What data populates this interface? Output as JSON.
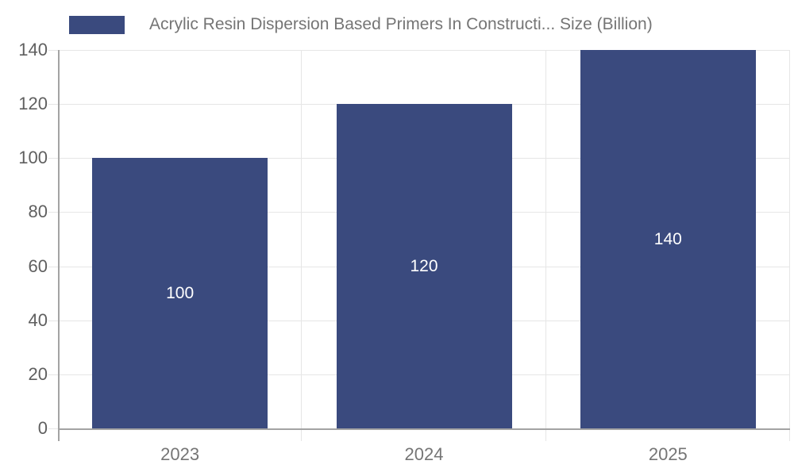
{
  "legend": {
    "label": "Acrylic Resin Dispersion Based Primers In Constructi... Size (Billion)"
  },
  "colors": {
    "background": "#ffffff",
    "bar": "#3a4a7e",
    "grid": "#e6e6e6",
    "axis": "#a3a3a3",
    "legend_text": "#757575",
    "x_tick_text": "#757575",
    "y_tick_text": "#5f5f5f",
    "bar_label": "#ffffff"
  },
  "chart_data": {
    "type": "bar",
    "title": "Acrylic Resin Dispersion Based Primers In Constructi... Size (Billion)",
    "series": [
      {
        "name": "Acrylic Resin Dispersion Based Primers In Constructi... Size (Billion)",
        "values": [
          100,
          120,
          140
        ]
      }
    ],
    "categories": [
      "2023",
      "2024",
      "2025"
    ],
    "data_labels": [
      "100",
      "120",
      "140"
    ],
    "xlabel": "",
    "ylabel": "",
    "ylim": [
      0,
      140
    ],
    "yticks": [
      0,
      20,
      40,
      60,
      80,
      100,
      120,
      140
    ],
    "grid": true,
    "legend_position": "top-left"
  }
}
